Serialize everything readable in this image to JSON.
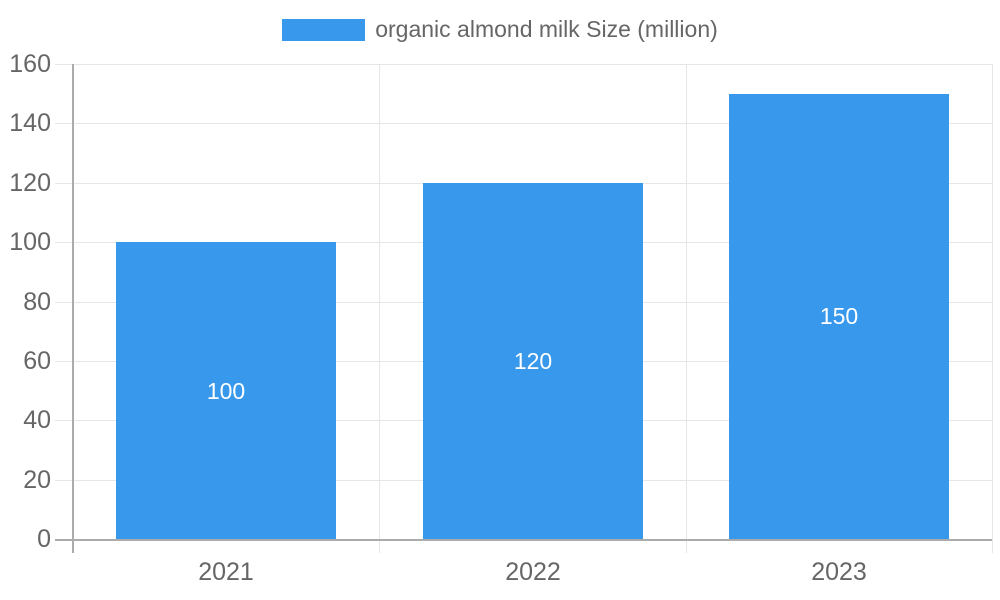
{
  "legend": {
    "label": "organic almond milk Size (million)"
  },
  "chart_data": {
    "type": "bar",
    "title": "",
    "xlabel": "",
    "ylabel": "",
    "categories": [
      "2021",
      "2022",
      "2023"
    ],
    "series": [
      {
        "name": "organic almond milk Size (million)",
        "values": [
          100,
          120,
          150
        ]
      }
    ],
    "data_labels": [
      "100",
      "120",
      "150"
    ],
    "ylim": [
      0,
      160
    ],
    "ytick_step": 20,
    "ytick_labels": [
      "0",
      "20",
      "40",
      "60",
      "80",
      "100",
      "120",
      "140",
      "160"
    ],
    "grid": true,
    "legend_position": "top",
    "colors": {
      "bar": "#3898ec",
      "axis_line": "#ababab",
      "grid_line": "#e6e6e6",
      "tick_text": "#666666",
      "data_label": "#ffffff"
    }
  }
}
